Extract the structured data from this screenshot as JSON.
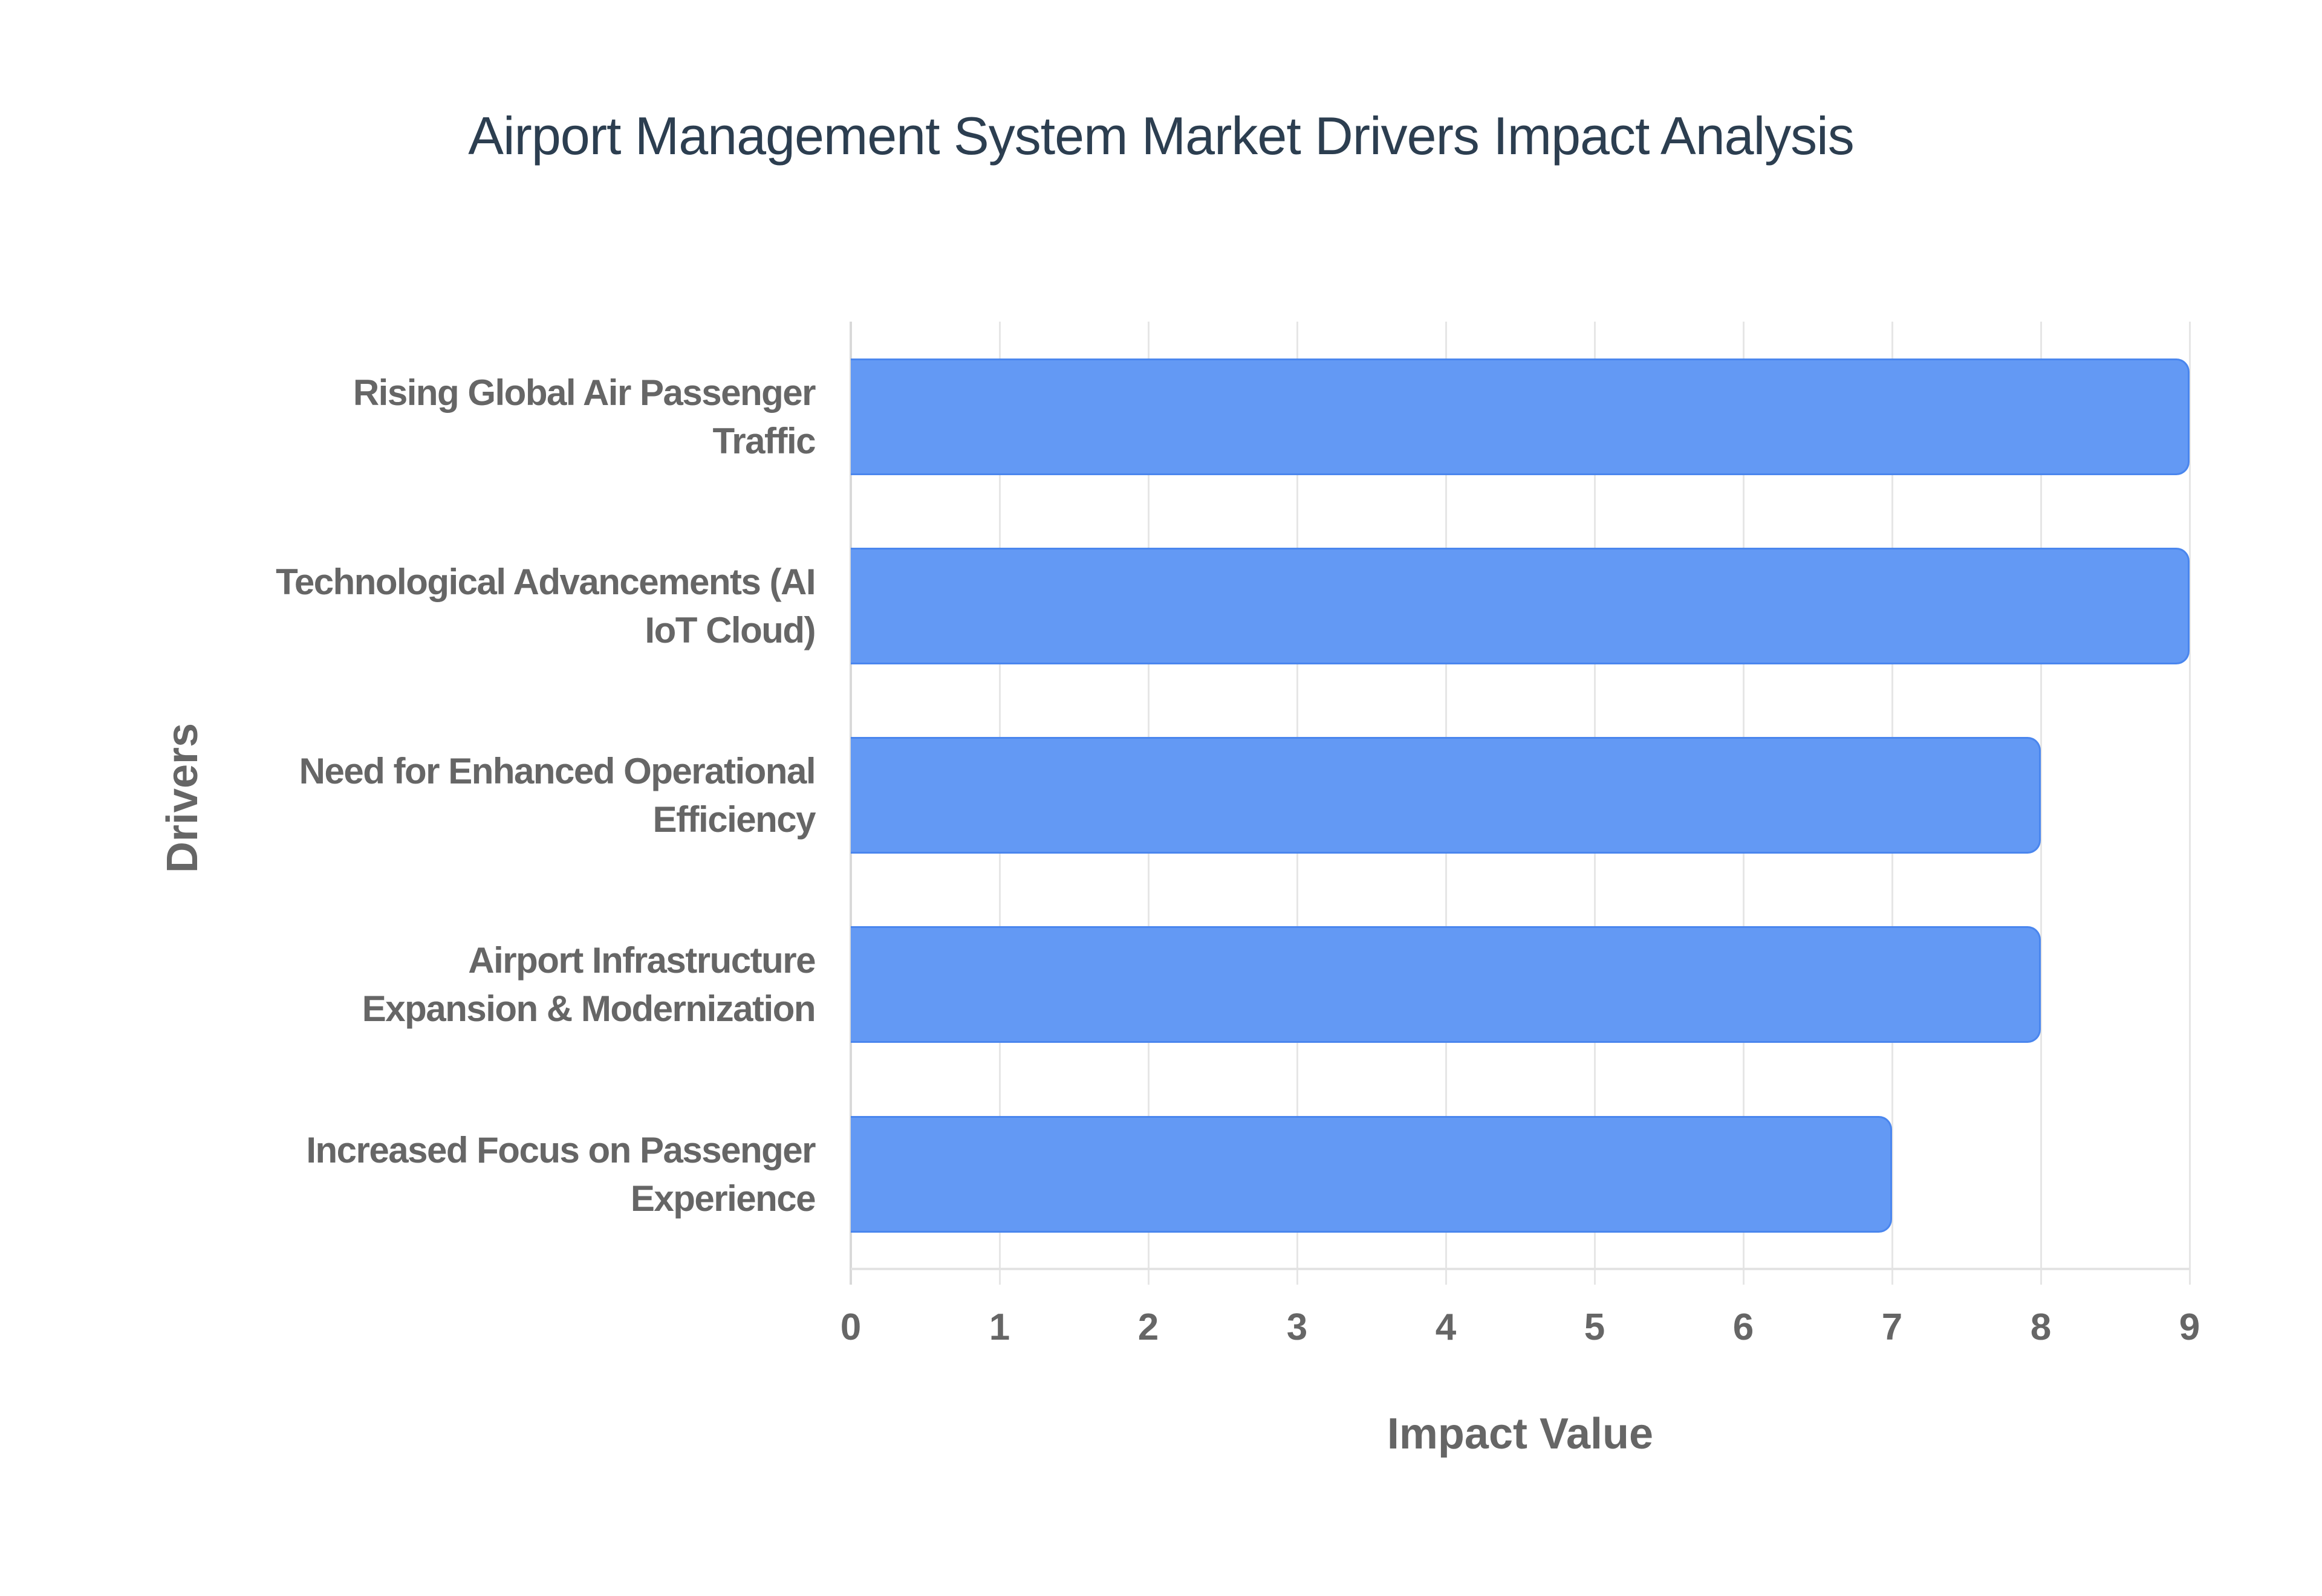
{
  "title": "Airport Management System Market Drivers Impact Analysis",
  "axes": {
    "x_title": "Impact Value",
    "y_title": "Drivers",
    "x_ticks": [
      "0",
      "1",
      "2",
      "3",
      "4",
      "5",
      "6",
      "7",
      "8",
      "9"
    ]
  },
  "bars": [
    {
      "label_lines": [
        "Rising Global Air Passenger",
        "Traffic"
      ],
      "value": 9
    },
    {
      "label_lines": [
        "Technological Advancements (AI",
        "IoT Cloud)"
      ],
      "value": 9
    },
    {
      "label_lines": [
        "Need for Enhanced Operational",
        "Efficiency"
      ],
      "value": 8
    },
    {
      "label_lines": [
        "Airport Infrastructure",
        "Expansion & Modernization"
      ],
      "value": 8
    },
    {
      "label_lines": [
        "Increased Focus on Passenger",
        "Experience"
      ],
      "value": 7
    }
  ],
  "colors": {
    "bar_fill": "#6399F4",
    "bar_border": "#4A86EE",
    "title": "#2C3E50",
    "axis_text": "#666666",
    "grid": "#e6e6e6"
  },
  "chart_data": {
    "type": "bar",
    "orientation": "horizontal",
    "title": "Airport Management System Market Drivers Impact Analysis",
    "xlabel": "Impact Value",
    "ylabel": "Drivers",
    "categories": [
      "Rising Global Air Passenger Traffic",
      "Technological Advancements (AI IoT Cloud)",
      "Need for Enhanced Operational Efficiency",
      "Airport Infrastructure Expansion & Modernization",
      "Increased Focus on Passenger Experience"
    ],
    "values": [
      9,
      9,
      8,
      8,
      7
    ],
    "xlim": [
      0,
      9
    ],
    "x_ticks": [
      0,
      1,
      2,
      3,
      4,
      5,
      6,
      7,
      8,
      9
    ],
    "grid": true,
    "legend": null
  }
}
